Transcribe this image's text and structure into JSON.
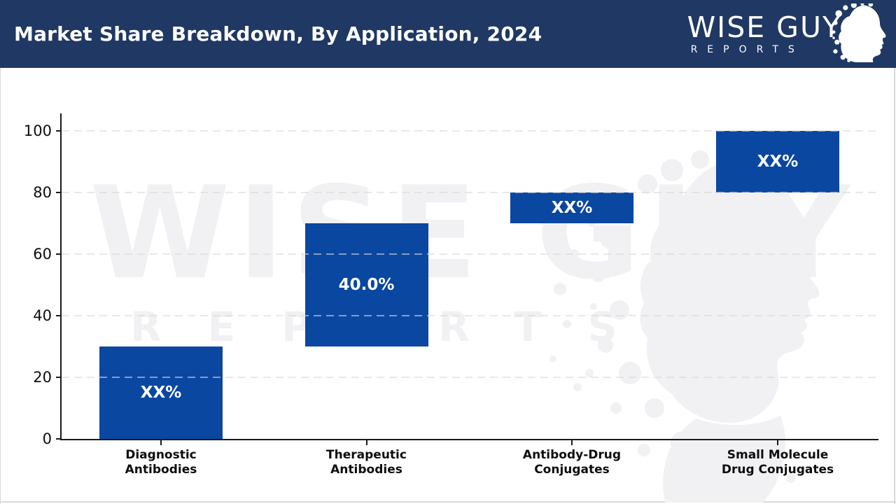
{
  "header": {
    "title": "Market Share Breakdown, By Application, 2024",
    "logo": {
      "line1": "WISE GUY",
      "line2": "REPORTS"
    }
  },
  "watermark": {
    "line1": "WISE GUY",
    "line2": "REPORTS"
  },
  "colors": {
    "header_bg": "#1f3864",
    "bar": "#0a47a1",
    "grid": "#d8d8d8",
    "axis": "#1a1a1a",
    "watermark": "#f1f1f3",
    "frame_border": "#d9d9d9"
  },
  "chart_data": {
    "type": "bar",
    "variant": "waterfall",
    "title": "Market Share Breakdown, By Application, 2024",
    "categories": [
      "Diagnostic Antibodies",
      "Therapeutic Antibodies",
      "Antibody-Drug Conjugates",
      "Small Molecule Drug Conjugates"
    ],
    "category_label_lines": [
      [
        "Diagnostic",
        "Antibodies"
      ],
      [
        "Therapeutic",
        "Antibodies"
      ],
      [
        "Antibody-Drug",
        "Conjugates"
      ],
      [
        "Small Molecule",
        "Drug Conjugates"
      ]
    ],
    "series": [
      {
        "name": "Market Share (%)",
        "segments": [
          {
            "category": "Diagnostic Antibodies",
            "start": 0,
            "end": 30,
            "value": 30,
            "label": "XX%"
          },
          {
            "category": "Therapeutic Antibodies",
            "start": 30,
            "end": 70,
            "value": 40,
            "label": "40.0%"
          },
          {
            "category": "Antibody-Drug Conjugates",
            "start": 70,
            "end": 80,
            "value": 10,
            "label": "XX%"
          },
          {
            "category": "Small Molecule Drug Conjugates",
            "start": 80,
            "end": 100,
            "value": 20,
            "label": "XX%"
          }
        ]
      }
    ],
    "xlabel": "",
    "ylabel": "",
    "ylim": [
      0,
      105
    ],
    "yticks": [
      0,
      20,
      40,
      60,
      80,
      100
    ],
    "grid": {
      "axis": "y",
      "style": "dashed"
    },
    "legend": null
  }
}
